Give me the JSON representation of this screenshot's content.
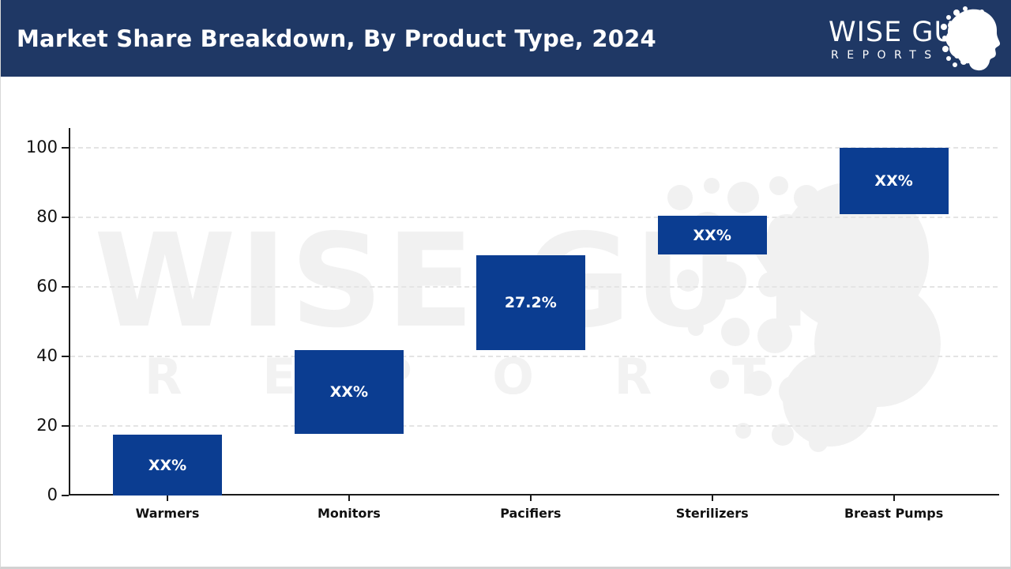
{
  "header": {
    "title": "Market Share Breakdown, By Product Type, 2024",
    "logo": {
      "line1": "WISE GUY",
      "line2": "REPORTS"
    },
    "bg_color": "#1f3865"
  },
  "watermark": {
    "line1": "WISE GUY",
    "line2": "REPORTS"
  },
  "chart_data": {
    "type": "bar",
    "subtype": "waterfall",
    "title": "Market Share Breakdown, By Product Type, 2024",
    "categories": [
      "Warmers",
      "Monitors",
      "Pacifiers",
      "Sterilizers",
      "Breast Pumps"
    ],
    "segments": [
      [
        0,
        17.5
      ],
      [
        17.7,
        41.8
      ],
      [
        41.9,
        69.1
      ],
      [
        69.3,
        80.4
      ],
      [
        80.9,
        100
      ]
    ],
    "values": [
      17.5,
      24.1,
      27.2,
      11.1,
      19.1
    ],
    "bar_labels": [
      "XX%",
      "XX%",
      "27.2%",
      "XX%",
      "XX%"
    ],
    "xlabel": "",
    "ylabel": "",
    "yticks": [
      0,
      20,
      40,
      60,
      80,
      100
    ],
    "ylim": [
      0,
      105
    ],
    "grid": "horizontal-dashed",
    "legend": "none",
    "bar_color": "#0b3d91",
    "bar_label_color": "#ffffff",
    "axis_color": "#1a1a1a",
    "grid_color": "#e4e4e4",
    "watermark_color": "#f1f1f1"
  }
}
